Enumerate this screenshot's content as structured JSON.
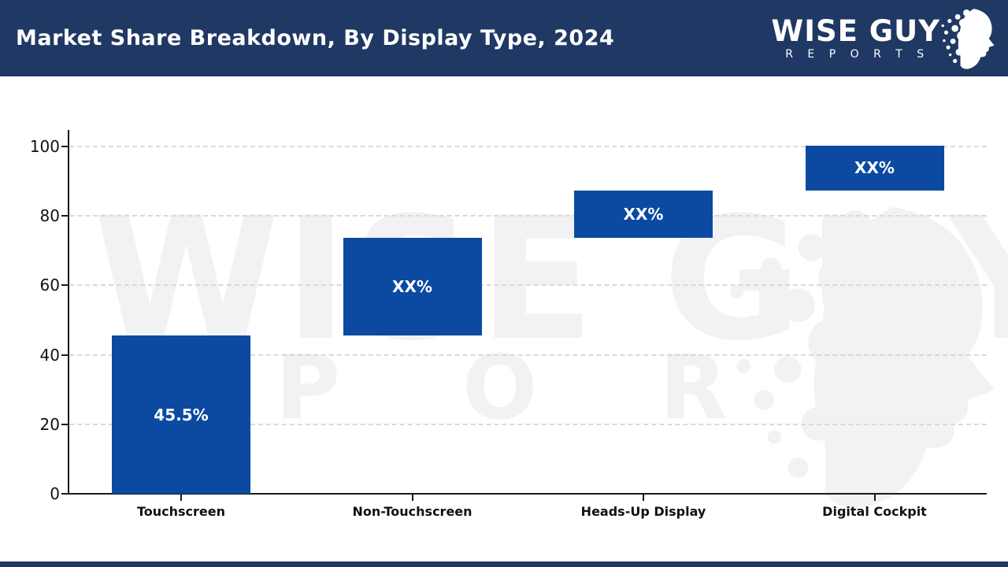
{
  "header": {
    "title": "Market Share Breakdown, By Display Type, 2024",
    "logo": {
      "line1": "WISE GUY",
      "line2": "R E P O R T S"
    }
  },
  "watermark": {
    "line1": "WISE GUY",
    "line2": "P O R T S"
  },
  "chart_data": {
    "type": "bar",
    "subtype": "waterfall",
    "title": "Market Share Breakdown, By Display Type, 2024",
    "xlabel": "",
    "ylabel": "",
    "categories": [
      "Touchscreen",
      "Non-Touchscreen",
      "Heads-Up Display",
      "Digital Cockpit"
    ],
    "segments": [
      {
        "category": "Touchscreen",
        "start": 0,
        "end": 45.5,
        "label": "45.5%"
      },
      {
        "category": "Non-Touchscreen",
        "start": 45.5,
        "end": 73.6,
        "label": "XX%"
      },
      {
        "category": "Heads-Up Display",
        "start": 73.6,
        "end": 87.4,
        "label": "XX%"
      },
      {
        "category": "Digital Cockpit",
        "start": 87.4,
        "end": 100.2,
        "label": "XX%"
      }
    ],
    "yticks": [
      0,
      20,
      40,
      60,
      80,
      100
    ],
    "ylim": [
      0,
      104.8
    ],
    "grid": true,
    "legend": false
  },
  "colors": {
    "header_bg": "#1f3864",
    "footer_bg": "#1f3864",
    "bar": "#0b4aa0",
    "bar_label": "#ffffff",
    "grid": "#d9d9d9",
    "axis": "#1a1a1a",
    "watermark": "#f2f2f4"
  }
}
